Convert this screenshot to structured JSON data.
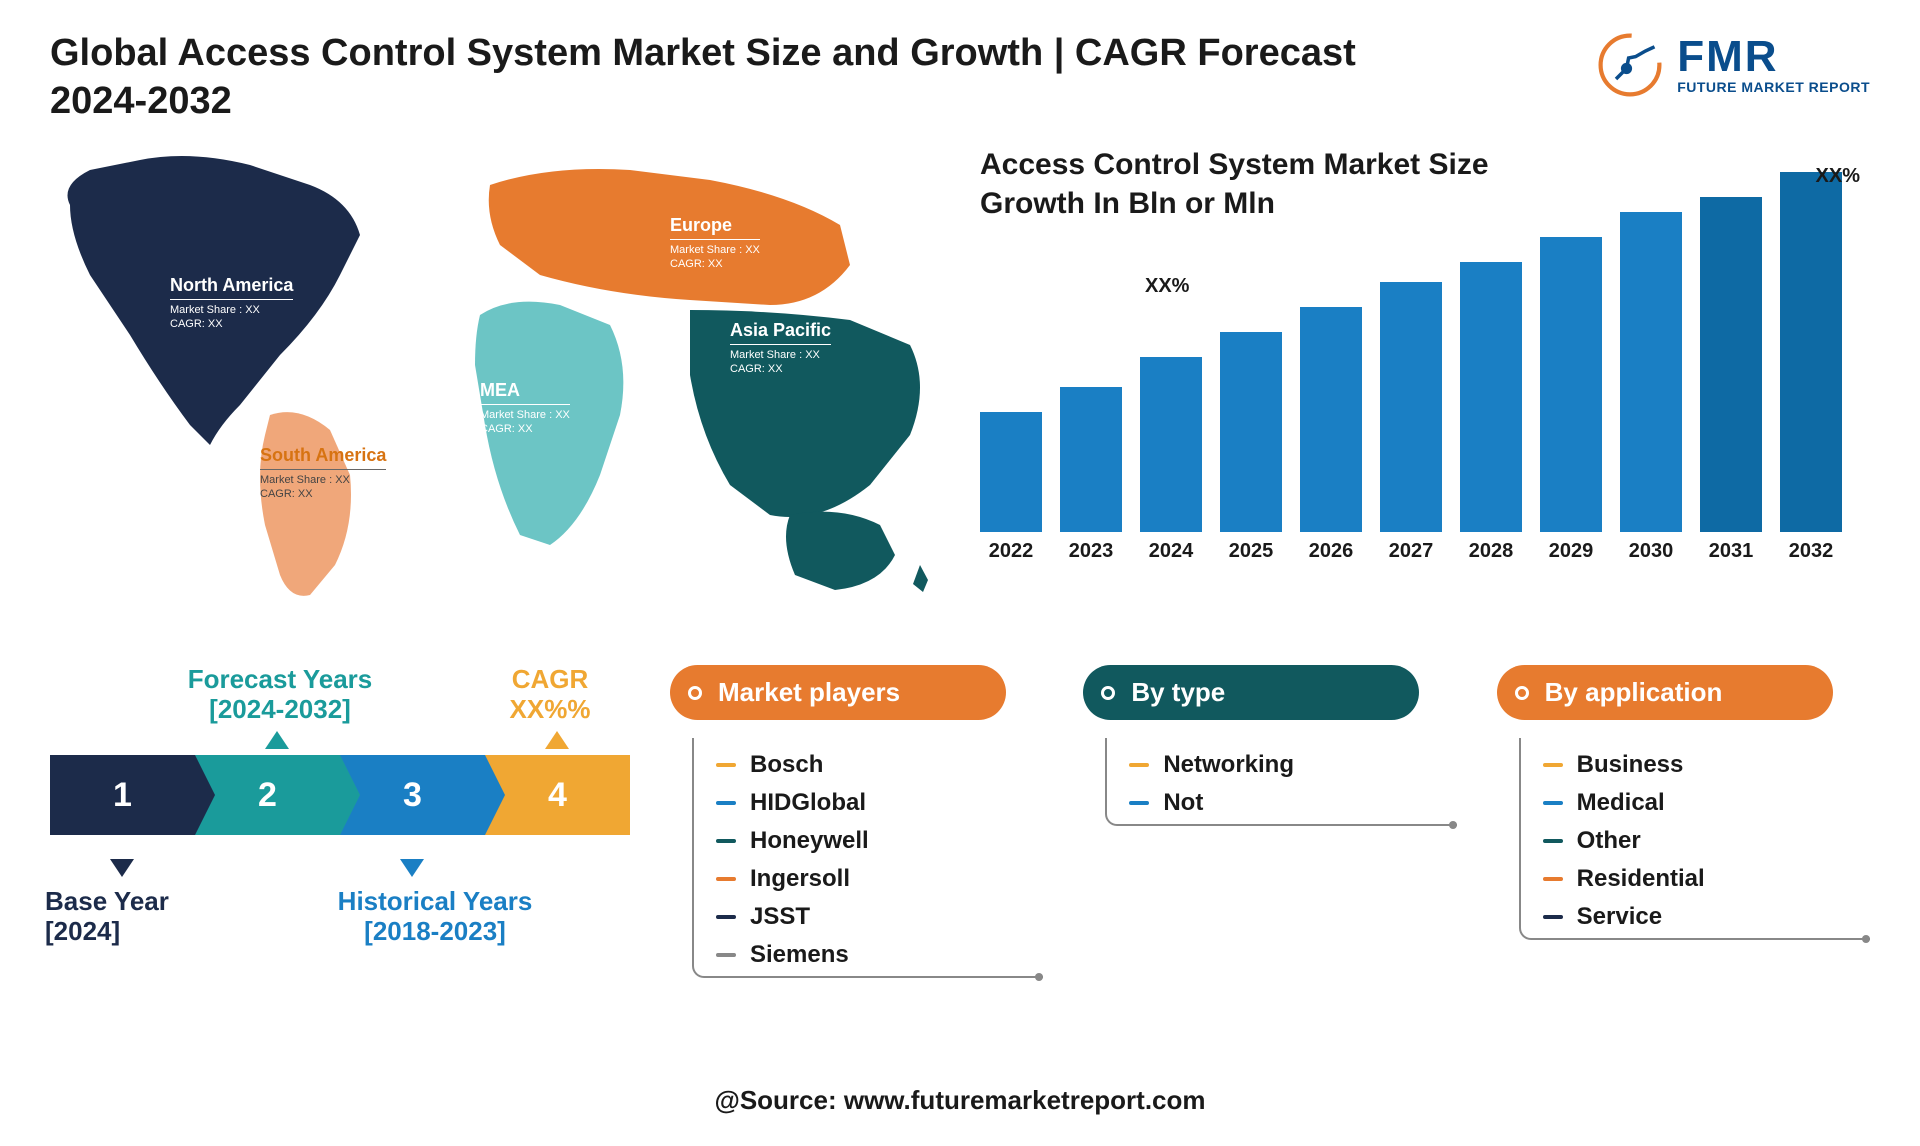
{
  "title": "Global Access Control System Market Size and Growth | CAGR Forecast 2024-2032",
  "logo": {
    "fmr": "FMR",
    "sub": "FUTURE MARKET REPORT"
  },
  "colors": {
    "navy": "#1c2b4a",
    "teal": "#1a9b9b",
    "blue": "#1a7fc4",
    "orange": "#e77b2f",
    "deep_teal": "#11595e",
    "light_teal": "#6cc5c5",
    "south_orange": "#f0a77a",
    "bar": "#1a7fc4",
    "bar_last": "#0e6aa4"
  },
  "regions": [
    {
      "name": "North America",
      "ms": "Market Share : XX",
      "cagr": "CAGR: XX",
      "color": "#1c2b4a",
      "label_light": true
    },
    {
      "name": "South America",
      "ms": "Market Share : XX",
      "cagr": "CAGR: XX",
      "color": "#f0a77a",
      "label_light": false
    },
    {
      "name": "Europe",
      "ms": "Market Share : XX",
      "cagr": "CAGR: XX",
      "color": "#e77b2f",
      "label_light": true
    },
    {
      "name": "MEA",
      "ms": "Market Share : XX",
      "cagr": "CAGR: XX",
      "color": "#6cc5c5",
      "label_light": true
    },
    {
      "name": "Asia Pacific",
      "ms": "Market Share : XX",
      "cagr": "CAGR: XX",
      "color": "#11595e",
      "label_light": true
    }
  ],
  "chart": {
    "title": "Access Control System Market Size Growth In Bln or Mln",
    "years": [
      "2022",
      "2023",
      "2024",
      "2025",
      "2026",
      "2027",
      "2028",
      "2029",
      "2030",
      "2031",
      "2032"
    ],
    "values": [
      120,
      145,
      175,
      200,
      225,
      250,
      270,
      295,
      320,
      335,
      360
    ],
    "annot1": "XX%",
    "annot2": "XX%",
    "bar_color": "#1a7fc4",
    "bar_last_color": "#0e6aa4",
    "max_h": 360
  },
  "timeline": {
    "seg1": {
      "n": "1",
      "color": "#1c2b4a"
    },
    "seg2": {
      "n": "2",
      "color": "#1a9b9b"
    },
    "seg3": {
      "n": "3",
      "color": "#1a7fc4"
    },
    "seg4": {
      "n": "4",
      "color": "#f0a733"
    },
    "base_year": {
      "label": "Base Year",
      "val": "[2024]",
      "color": "#1c2b4a"
    },
    "forecast": {
      "label": "Forecast Years",
      "val": "[2024-2032]",
      "color": "#1a9b9b"
    },
    "historical": {
      "label": "Historical Years",
      "val": "[2018-2023]",
      "color": "#1a7fc4"
    },
    "cagr": {
      "label": "CAGR",
      "val": "XX%%",
      "color": "#f0a733"
    }
  },
  "cat1": {
    "title": "Market players",
    "pill_color": "#e77b2f",
    "items": [
      {
        "txt": "Bosch",
        "c": "#f0a733"
      },
      {
        "txt": "HIDGlobal",
        "c": "#1a7fc4"
      },
      {
        "txt": "Honeywell",
        "c": "#11595e"
      },
      {
        "txt": "Ingersoll",
        "c": "#e77b2f"
      },
      {
        "txt": "JSST",
        "c": "#1c2b4a"
      },
      {
        "txt": "Siemens",
        "c": "#888888"
      }
    ]
  },
  "cat2": {
    "title": "By type",
    "pill_color": "#11595e",
    "items": [
      {
        "txt": "Networking",
        "c": "#f0a733"
      },
      {
        "txt": "Not",
        "c": "#1a7fc4"
      }
    ]
  },
  "cat3": {
    "title": "By application",
    "pill_color": "#e77b2f",
    "items": [
      {
        "txt": "Business",
        "c": "#f0a733"
      },
      {
        "txt": "Medical",
        "c": "#1a7fc4"
      },
      {
        "txt": "Other",
        "c": "#11595e"
      },
      {
        "txt": "Residential",
        "c": "#e77b2f"
      },
      {
        "txt": "Service",
        "c": "#1c2b4a"
      }
    ]
  },
  "source": "@Source: www.futuremarketreport.com"
}
